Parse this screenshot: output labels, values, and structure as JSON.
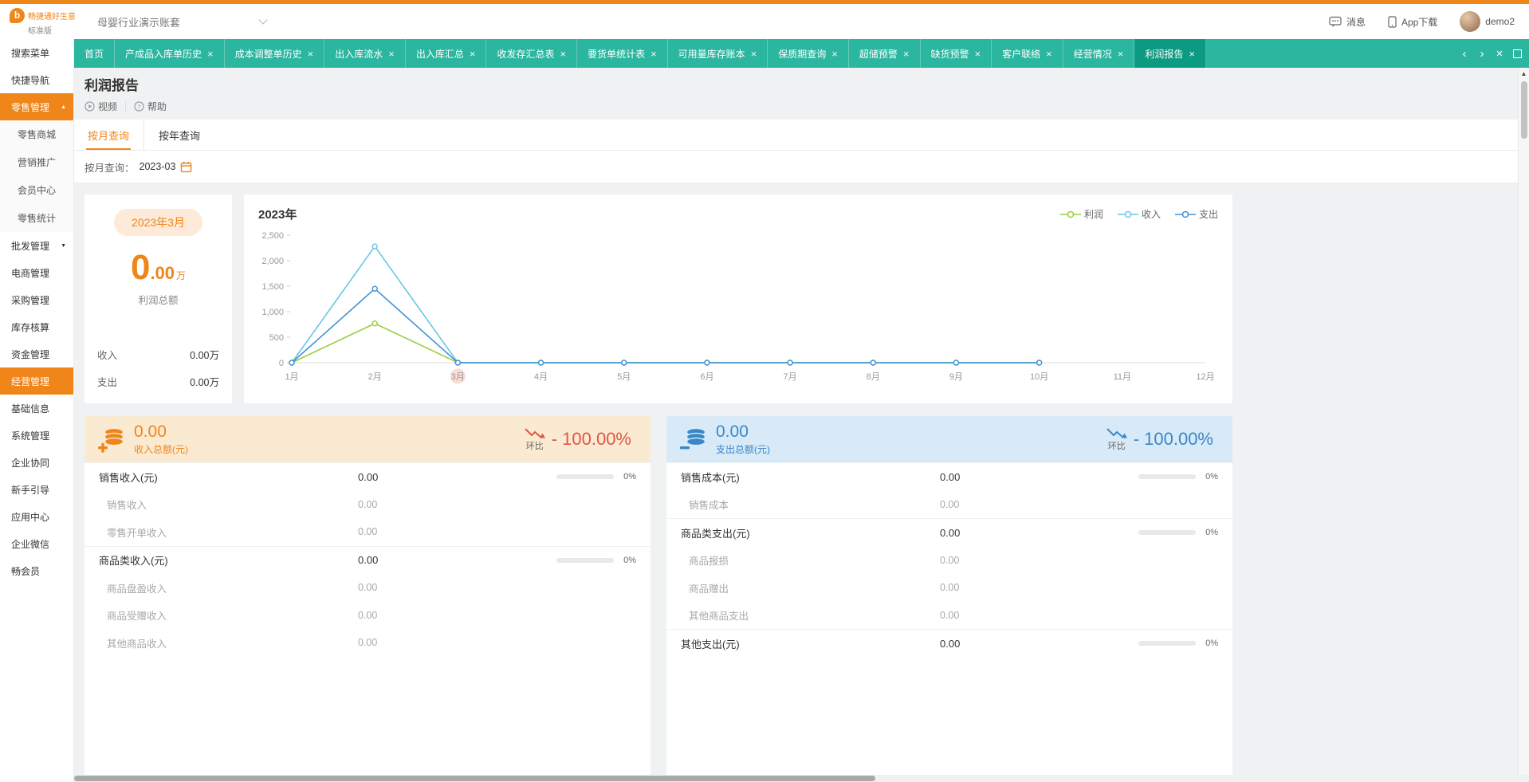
{
  "colors": {
    "accent_orange": "#f08519",
    "tabbar_teal": "#2bb6a0",
    "tab_active_teal": "#0d9a82",
    "income_ratio_red": "#e25545",
    "expense_blue": "#3a87c8"
  },
  "header": {
    "brand": "畅捷通好生意",
    "edition": "标准版",
    "account_selector": "母婴行业演示账套",
    "messages_label": "消息",
    "app_download_label": "App下载",
    "username": "demo2"
  },
  "sidebar": {
    "items": [
      {
        "label": "搜索菜单",
        "style": "top"
      },
      {
        "label": "快捷导航",
        "style": "top"
      },
      {
        "label": "零售管理",
        "style": "group-active",
        "arrow": "up"
      },
      {
        "label": "零售商城",
        "style": "sub"
      },
      {
        "label": "营销推广",
        "style": "sub"
      },
      {
        "label": "会员中心",
        "style": "sub"
      },
      {
        "label": "零售统计",
        "style": "sub"
      },
      {
        "label": "批发管理",
        "style": "group",
        "arrow": "down"
      },
      {
        "label": "电商管理",
        "style": "plain"
      },
      {
        "label": "采购管理",
        "style": "plain"
      },
      {
        "label": "库存核算",
        "style": "plain"
      },
      {
        "label": "资金管理",
        "style": "plain"
      },
      {
        "label": "经营管理",
        "style": "item-active"
      },
      {
        "label": "基础信息",
        "style": "plain"
      },
      {
        "label": "系统管理",
        "style": "plain"
      },
      {
        "label": "企业协同",
        "style": "plain"
      },
      {
        "label": "新手引导",
        "style": "plain"
      },
      {
        "label": "应用中心",
        "style": "plain"
      },
      {
        "label": "企业微信",
        "style": "plain"
      },
      {
        "label": "畅会员",
        "style": "plain"
      }
    ]
  },
  "tabbar": {
    "active_index": 13,
    "tabs": [
      {
        "label": "首页",
        "closable": false
      },
      {
        "label": "产成品入库单历史",
        "closable": true
      },
      {
        "label": "成本调整单历史",
        "closable": true
      },
      {
        "label": "出入库流水",
        "closable": true
      },
      {
        "label": "出入库汇总",
        "closable": true
      },
      {
        "label": "收发存汇总表",
        "closable": true
      },
      {
        "label": "要货单统计表",
        "closable": true
      },
      {
        "label": "可用量库存账本",
        "closable": true
      },
      {
        "label": "保质期查询",
        "closable": true
      },
      {
        "label": "超储预警",
        "closable": true
      },
      {
        "label": "缺货预警",
        "closable": true
      },
      {
        "label": "客户联络",
        "closable": true
      },
      {
        "label": "经营情况",
        "closable": true
      },
      {
        "label": "利润报告",
        "closable": true
      }
    ]
  },
  "page": {
    "title": "利润报告",
    "video_label": "视频",
    "help_label": "帮助",
    "query_tabs": [
      {
        "label": "按月查询",
        "active": true
      },
      {
        "label": "按年查询",
        "active": false
      }
    ],
    "date_label": "按月查询：",
    "date_value": "2023-03"
  },
  "summary": {
    "period": "2023年3月",
    "amount_int": "0",
    "amount_dec": ".00",
    "amount_unit": "万",
    "amount_label": "利润总额",
    "rows": [
      {
        "label": "收入",
        "value": "0.00万"
      },
      {
        "label": "支出",
        "value": "0.00万"
      }
    ]
  },
  "chart_data": {
    "type": "line",
    "title": "2023年",
    "x": [
      "1月",
      "2月",
      "3月",
      "4月",
      "5月",
      "6月",
      "7月",
      "8月",
      "9月",
      "10月",
      "11月",
      "12月"
    ],
    "yticks": [
      0,
      500,
      1000,
      1500,
      2000,
      2500
    ],
    "ylim": [
      0,
      2500
    ],
    "grid": false,
    "legend_position": "top-right",
    "highlight_index": 2,
    "highlight_bg": "#fadbd5",
    "highlight_color": "#e25545",
    "series": [
      {
        "name": "利润",
        "color": "#9ecb3e",
        "values": [
          0,
          770,
          0,
          0,
          0,
          0,
          0,
          0,
          0,
          0,
          null,
          null
        ]
      },
      {
        "name": "收入",
        "color": "#67c6e8",
        "values": [
          0,
          2280,
          0,
          0,
          0,
          0,
          0,
          0,
          0,
          0,
          null,
          null
        ]
      },
      {
        "name": "支出",
        "color": "#4192d4",
        "values": [
          0,
          1450,
          0,
          0,
          0,
          0,
          0,
          0,
          0,
          0,
          null,
          null
        ]
      }
    ]
  },
  "income_panel": {
    "total": "0.00",
    "total_label": "收入总额(元)",
    "ratio_label": "环比",
    "ratio_value": "- 100.00%",
    "rows": [
      {
        "label": "销售收入(元)",
        "value": "0.00",
        "type": "parent",
        "percent": "0%"
      },
      {
        "label": "销售收入",
        "value": "0.00",
        "type": "child"
      },
      {
        "label": "零售开单收入",
        "value": "0.00",
        "type": "child"
      },
      {
        "label": "商品类收入(元)",
        "value": "0.00",
        "type": "parent",
        "percent": "0%"
      },
      {
        "label": "商品盘盈收入",
        "value": "0.00",
        "type": "child"
      },
      {
        "label": "商品受赠收入",
        "value": "0.00",
        "type": "child"
      },
      {
        "label": "其他商品收入",
        "value": "0.00",
        "type": "child"
      }
    ]
  },
  "expense_panel": {
    "total": "0.00",
    "total_label": "支出总额(元)",
    "ratio_label": "环比",
    "ratio_value": "- 100.00%",
    "rows": [
      {
        "label": "销售成本(元)",
        "value": "0.00",
        "type": "parent",
        "percent": "0%"
      },
      {
        "label": "销售成本",
        "value": "0.00",
        "type": "child"
      },
      {
        "label": "商品类支出(元)",
        "value": "0.00",
        "type": "parent",
        "percent": "0%"
      },
      {
        "label": "商品报损",
        "value": "0.00",
        "type": "child"
      },
      {
        "label": "商品赠出",
        "value": "0.00",
        "type": "child"
      },
      {
        "label": "其他商品支出",
        "value": "0.00",
        "type": "child"
      },
      {
        "label": "其他支出(元)",
        "value": "0.00",
        "type": "parent",
        "percent": "0%"
      }
    ]
  }
}
